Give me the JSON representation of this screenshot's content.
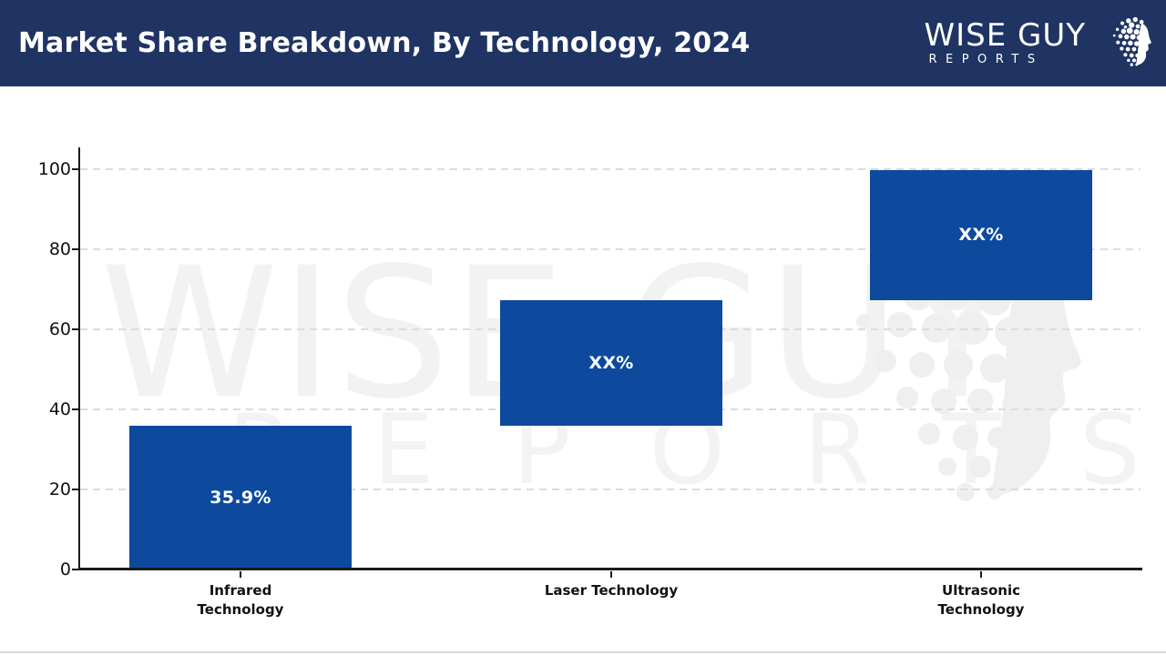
{
  "header": {
    "title": "Market Share Breakdown, By Technology, 2024",
    "bg_color": "#1f3463",
    "logo": {
      "wordmark": "WISE GUY",
      "subtext": "REPORTS"
    }
  },
  "watermark": {
    "line1": "WISE GUY",
    "line2": "REPORTS"
  },
  "chart_data": {
    "type": "bar",
    "variant": "waterfall-stacked",
    "title": "Market Share Breakdown, By Technology, 2024",
    "xlabel": "",
    "ylabel": "",
    "categories": [
      "Infrared Technology",
      "Laser Technology",
      "Ultrasonic Technology"
    ],
    "category_lines": [
      [
        "Infrared",
        "Technology"
      ],
      [
        "Laser Technology"
      ],
      [
        "Ultrasonic",
        "Technology"
      ]
    ],
    "segments": [
      {
        "category": "Infrared Technology",
        "start": 0,
        "end": 35.9,
        "value": 35.9,
        "label": "35.9%"
      },
      {
        "category": "Laser Technology",
        "start": 35.9,
        "end": 67.3,
        "value": 31.4,
        "label": "XX%"
      },
      {
        "category": "Ultrasonic Technology",
        "start": 67.3,
        "end": 99.8,
        "value": 32.5,
        "label": "XX%"
      }
    ],
    "y_ticks": [
      0,
      20,
      40,
      60,
      80,
      100
    ],
    "ylim": [
      0,
      105
    ],
    "grid": "horizontal-dashed",
    "legend": "none",
    "bar_color": "#0d4a9e",
    "bar_label_color": "#ffffff",
    "grid_color": "#dcdcdc",
    "axis_color": "#1a1a1a"
  }
}
